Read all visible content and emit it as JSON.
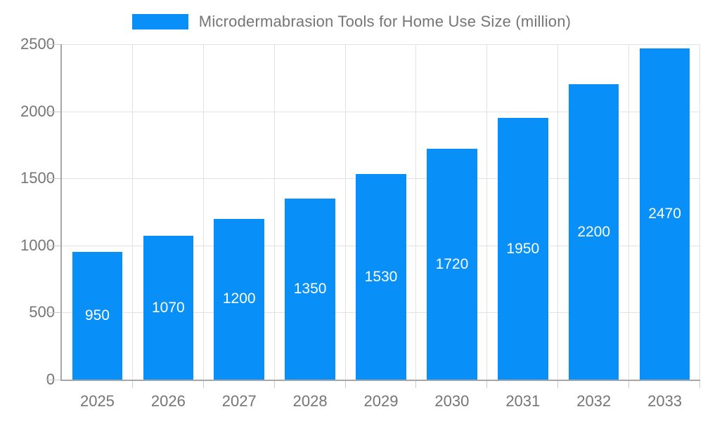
{
  "legend": {
    "series_label": "Microdermabrasion Tools for Home Use Size (million)"
  },
  "chart_data": {
    "type": "bar",
    "title": "Microdermabrasion Tools for Home Use Size (million)",
    "categories": [
      "2025",
      "2026",
      "2027",
      "2028",
      "2029",
      "2030",
      "2031",
      "2032",
      "2033"
    ],
    "values": [
      950,
      1070,
      1200,
      1350,
      1530,
      1720,
      1950,
      2200,
      2470
    ],
    "xlabel": "",
    "ylabel": "",
    "ylim": [
      0,
      2500
    ],
    "y_ticks": [
      0,
      500,
      1000,
      1500,
      2000,
      2500
    ],
    "grid": true,
    "legend_position": "top",
    "colors": {
      "bar": "#0890F8",
      "value_label_text": "#FFFFFF",
      "tick_text": "#757575",
      "title_text": "#757575",
      "gridline": "#E2E2E2",
      "axis_line": "#A6A6A6"
    }
  }
}
